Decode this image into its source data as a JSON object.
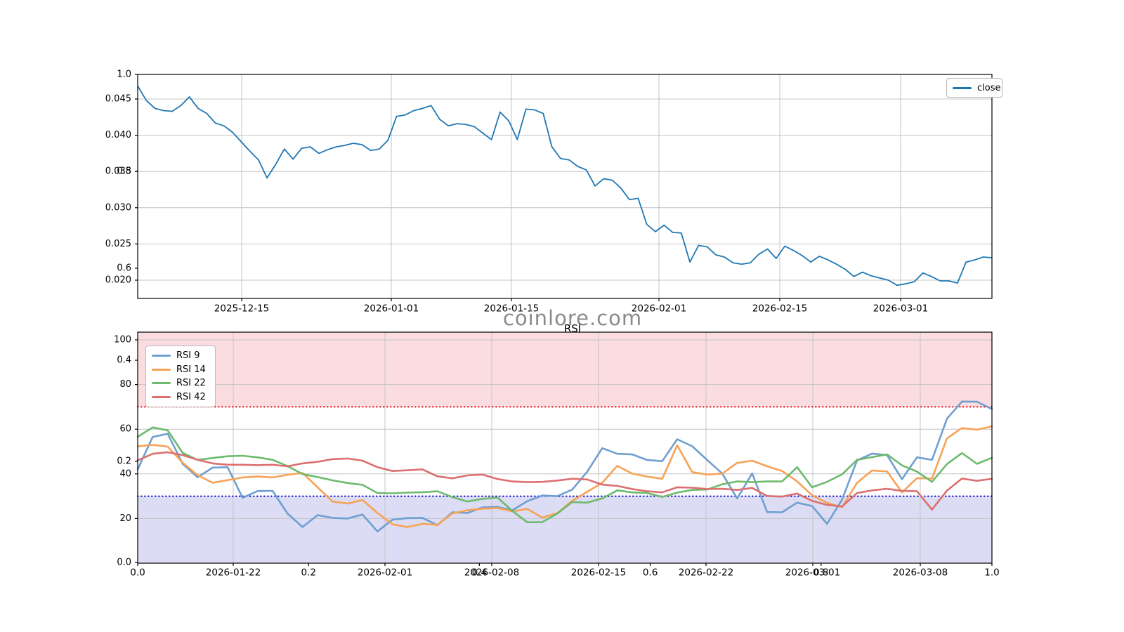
{
  "watermark": "coinlore.com",
  "colors": {
    "close": "#1f77b4",
    "rsi9": "#6f9fd0",
    "rsi14": "#f8a256",
    "rsi22": "#6dba6d",
    "rsi42": "#dc6f6f",
    "overbought_line": "#e8000b",
    "oversold_line": "#0000cd",
    "overbought_band": "#fbdde1",
    "oversold_band": "#dcdcf5",
    "grid": "#c4c4c4",
    "spine": "#000000",
    "watermark_color": "#8a8a8a"
  },
  "chart_data": [
    {
      "type": "line",
      "title": "",
      "legend_position": "upper right",
      "grid": true,
      "x_range": {
        "start": "2025-12-03",
        "end": "2026-03-12",
        "freq": "daily",
        "points": 100
      },
      "x_tick_labels": [
        "2025-12-15",
        "2026-01-01",
        "2026-01-15",
        "2026-02-01",
        "2026-02-15",
        "2026-03-01"
      ],
      "y_tick_labels": [
        "0.045",
        "0.040",
        "0.035",
        "0.030",
        "0.025",
        "0.020"
      ],
      "y_tick_values": [
        0.045,
        0.04,
        0.035,
        0.03,
        0.025,
        0.02
      ],
      "secondary_y_tick_labels": [
        "1.0",
        "0.8",
        "0.6"
      ],
      "ylim": [
        0.0175,
        0.0484
      ],
      "series": [
        {
          "name": "close",
          "color": "#1f77b4",
          "width": 1.8,
          "values": [
            0.0468,
            0.0448,
            0.0437,
            0.0434,
            0.0433,
            0.0441,
            0.0453,
            0.0437,
            0.043,
            0.0417,
            0.0413,
            0.0404,
            0.0391,
            0.0378,
            0.0366,
            0.0341,
            0.036,
            0.0381,
            0.0367,
            0.0382,
            0.0384,
            0.0375,
            0.038,
            0.0384,
            0.0386,
            0.0389,
            0.0387,
            0.0379,
            0.0381,
            0.0393,
            0.0426,
            0.0428,
            0.0434,
            0.0437,
            0.0441,
            0.0422,
            0.0413,
            0.0416,
            0.0415,
            0.0412,
            0.0403,
            0.0394,
            0.0432,
            0.042,
            0.0394,
            0.0436,
            0.0435,
            0.043,
            0.0384,
            0.0368,
            0.0366,
            0.0357,
            0.0352,
            0.033,
            0.034,
            0.0338,
            0.0327,
            0.0311,
            0.0313,
            0.0277,
            0.0267,
            0.0276,
            0.0266,
            0.0265,
            0.0225,
            0.0248,
            0.0246,
            0.0235,
            0.0232,
            0.0224,
            0.0222,
            0.0224,
            0.0236,
            0.0243,
            0.023,
            0.0247,
            0.0241,
            0.0234,
            0.0225,
            0.0233,
            0.0228,
            0.0222,
            0.0215,
            0.0205,
            0.0211,
            0.0206,
            0.0203,
            0.02,
            0.0193,
            0.0195,
            0.0198,
            0.021,
            0.0205,
            0.0199,
            0.0199,
            0.0196,
            0.0225,
            0.0228,
            0.0232,
            0.0231
          ]
        }
      ]
    },
    {
      "type": "line",
      "title": "RSI",
      "legend_position": "upper left",
      "grid": true,
      "x_range": {
        "start": "2026-01-14",
        "end": "2026-03-12",
        "freq": "daily",
        "points": 58
      },
      "x_tick_labels": [
        "2026-01-22",
        "2026-02-01",
        "2026-02-08",
        "2026-02-15",
        "2026-02-22",
        "2026-03-01",
        "2026-03-08"
      ],
      "secondary_x_tick_labels": [
        "0.0",
        "0.2",
        "0.4",
        "0.6",
        "0.8",
        "1.0"
      ],
      "y_tick_labels": [
        "100",
        "80",
        "60",
        "40",
        "20"
      ],
      "y_tick_values": [
        100,
        80,
        60,
        40,
        20
      ],
      "secondary_y_tick_labels": [
        "0.4",
        "0.2",
        "0.0"
      ],
      "ylim": [
        0,
        103.5
      ],
      "overbought_level": 70,
      "oversold_level": 30,
      "bands": [
        {
          "name": "overbought-band",
          "from": 70,
          "to": 103.5,
          "color": "#fbdde1"
        },
        {
          "name": "oversold-band",
          "from": 0,
          "to": 30,
          "color": "#dcdcf5"
        }
      ],
      "hlines": [
        {
          "name": "overbought-line",
          "y": 70,
          "color": "#e8000b",
          "style": "dotted"
        },
        {
          "name": "oversold-line",
          "y": 30,
          "color": "#0000cd",
          "style": "dotted"
        }
      ],
      "series": [
        {
          "name": "RSI 9",
          "color": "#6f9fd0",
          "width": 2.6,
          "values": [
            42,
            56.5,
            58,
            44.5,
            38.5,
            42.8,
            43,
            29.3,
            32.3,
            32.4,
            22.2,
            16.2,
            21.5,
            20.3,
            20,
            21.8,
            14.2,
            19.5,
            20.2,
            20.3,
            17,
            22.8,
            22.5,
            25,
            25.2,
            23.7,
            27.8,
            30.3,
            30,
            33,
            41,
            51.5,
            49,
            48.7,
            46.2,
            45.7,
            55.5,
            52.4,
            46.2,
            40.2,
            29,
            40.2,
            22.9,
            22.8,
            27.1,
            25.6,
            17.6,
            28.5,
            46,
            49.1,
            48.4,
            37.6,
            47.4,
            46.3,
            64.7,
            72.4,
            72.3,
            69
          ]
        },
        {
          "name": "RSI 14",
          "color": "#f8a256",
          "width": 2.6,
          "values": [
            52.3,
            53,
            52.2,
            45,
            39.4,
            36,
            37.2,
            38.4,
            38.8,
            38.4,
            39.6,
            40.4,
            34,
            27.6,
            26.7,
            28.3,
            22.5,
            17.4,
            16.2,
            17.6,
            17.2,
            22.3,
            23.7,
            24.4,
            24.7,
            23.2,
            24.3,
            20.4,
            22.4,
            28,
            32,
            36,
            43.6,
            40.1,
            38.8,
            37.8,
            52.8,
            40.8,
            39.7,
            40.1,
            44.9,
            45.9,
            43.4,
            41.3,
            36.6,
            30.4,
            27,
            25.1,
            36,
            41.5,
            41.1,
            31.7,
            38.1,
            37.9,
            55.9,
            60.5,
            59.8,
            61.3
          ]
        },
        {
          "name": "RSI 22",
          "color": "#6dba6d",
          "width": 2.6,
          "values": [
            56.6,
            60.8,
            59.5,
            49.4,
            46.2,
            47.1,
            47.9,
            48.1,
            47.4,
            46.3,
            43.5,
            39.9,
            38.6,
            37.1,
            35.9,
            35.1,
            31.4,
            31.3,
            31.6,
            31.8,
            32.2,
            29.6,
            27.6,
            28.8,
            29.4,
            23.4,
            18.3,
            18.4,
            22.2,
            27.4,
            27.1,
            29,
            32.6,
            31.7,
            31.4,
            29.7,
            31.6,
            32.8,
            33,
            35.3,
            36.6,
            36.3,
            36.6,
            36.6,
            43,
            34,
            36.4,
            39.8,
            46.3,
            47.5,
            48.7,
            43.8,
            41,
            36.4,
            44.4,
            49.3,
            44.5,
            47.2
          ]
        },
        {
          "name": "RSI 42",
          "color": "#dc6f6f",
          "width": 2.6,
          "values": [
            46,
            49,
            49.7,
            48.4,
            46.3,
            44.7,
            44.1,
            44.1,
            43.9,
            44.1,
            43.4,
            44.7,
            45.4,
            46.6,
            46.9,
            45.9,
            43,
            41.3,
            41.6,
            42,
            38.9,
            38,
            39.3,
            39.7,
            37.7,
            36.6,
            36.3,
            36.4,
            37,
            37.8,
            37.5,
            35.2,
            34.6,
            33.2,
            32.2,
            31.7,
            34,
            33.8,
            33.2,
            33.3,
            32.8,
            33.7,
            30.1,
            29.8,
            31.2,
            27.9,
            26.1,
            25.4,
            31.4,
            32.6,
            33.3,
            32.4,
            32.2,
            24,
            32.5,
            37.9,
            36.9,
            37.8
          ]
        }
      ]
    }
  ]
}
